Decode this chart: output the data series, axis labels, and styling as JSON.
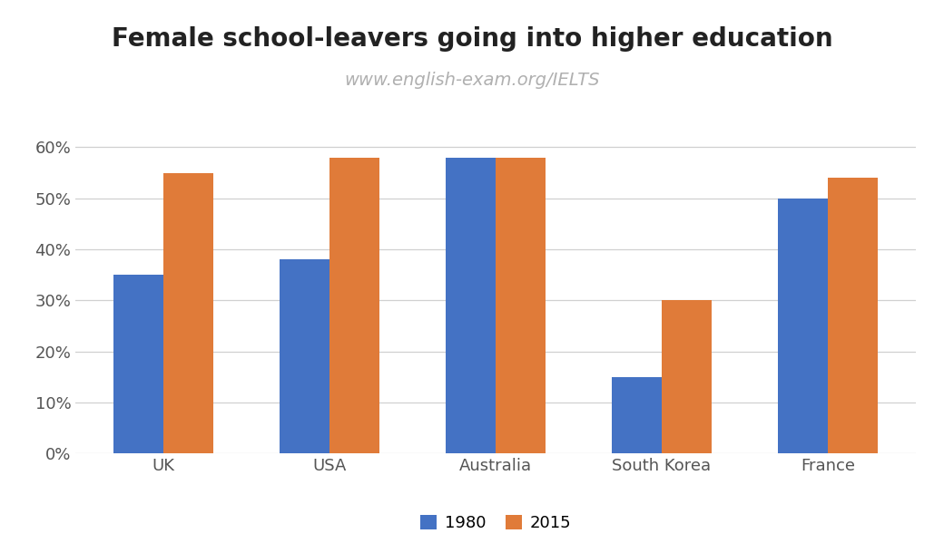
{
  "title": "Female school-leavers going into higher education",
  "subtitle": "www.english-exam.org/IELTS",
  "categories": [
    "UK",
    "USA",
    "Australia",
    "South Korea",
    "France"
  ],
  "values_1980": [
    0.35,
    0.38,
    0.58,
    0.15,
    0.5
  ],
  "values_2015": [
    0.55,
    0.58,
    0.58,
    0.3,
    0.54
  ],
  "color_1980": "#4472C4",
  "color_2015": "#E07B39",
  "legend_labels": [
    "1980",
    "2015"
  ],
  "ylim": [
    0,
    0.65
  ],
  "yticks": [
    0.0,
    0.1,
    0.2,
    0.3,
    0.4,
    0.5,
    0.6
  ],
  "ytick_labels": [
    "0%",
    "10%",
    "20%",
    "30%",
    "40%",
    "50%",
    "60%"
  ],
  "background_color": "#ffffff",
  "title_fontsize": 20,
  "subtitle_fontsize": 14,
  "tick_fontsize": 13,
  "legend_fontsize": 13,
  "bar_width": 0.3
}
